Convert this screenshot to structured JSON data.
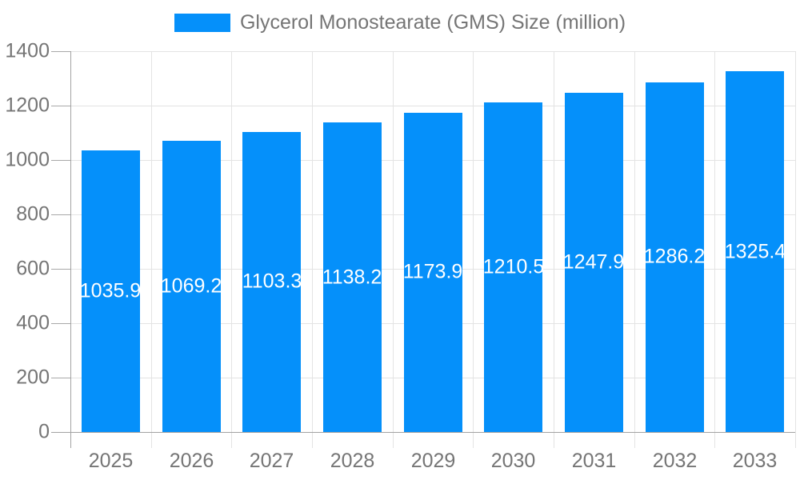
{
  "legend": {
    "label": "Glycerol Monostearate (GMS) Size (million)"
  },
  "chart_data": {
    "type": "bar",
    "title": "",
    "xlabel": "",
    "ylabel": "",
    "categories": [
      "2025",
      "2026",
      "2027",
      "2028",
      "2029",
      "2030",
      "2031",
      "2032",
      "2033"
    ],
    "series": [
      {
        "name": "Glycerol Monostearate (GMS) Size (million)",
        "values": [
          1035.9,
          1069.2,
          1103.3,
          1138.2,
          1173.9,
          1210.5,
          1247.9,
          1286.2,
          1325.4
        ]
      }
    ],
    "bar_labels": [
      "1035.9",
      "1069.2",
      "1103.3",
      "1138.2",
      "1173.9",
      "1210.5",
      "1247.9",
      "1286.2",
      "1325.4"
    ],
    "ylim": [
      0,
      1400
    ],
    "yticks": [
      0,
      200,
      400,
      600,
      800,
      1000,
      1200,
      1400
    ],
    "grid": true,
    "legend_position": "top-center"
  },
  "colors": {
    "bar_fill": "#0590fa",
    "gridline": "#e3e3e3",
    "axis_line": "#a2a2a2",
    "tick_line": "#a8a8a8",
    "label_text": "#757575",
    "bar_label_text": "#ffffff",
    "background": "#ffffff"
  }
}
